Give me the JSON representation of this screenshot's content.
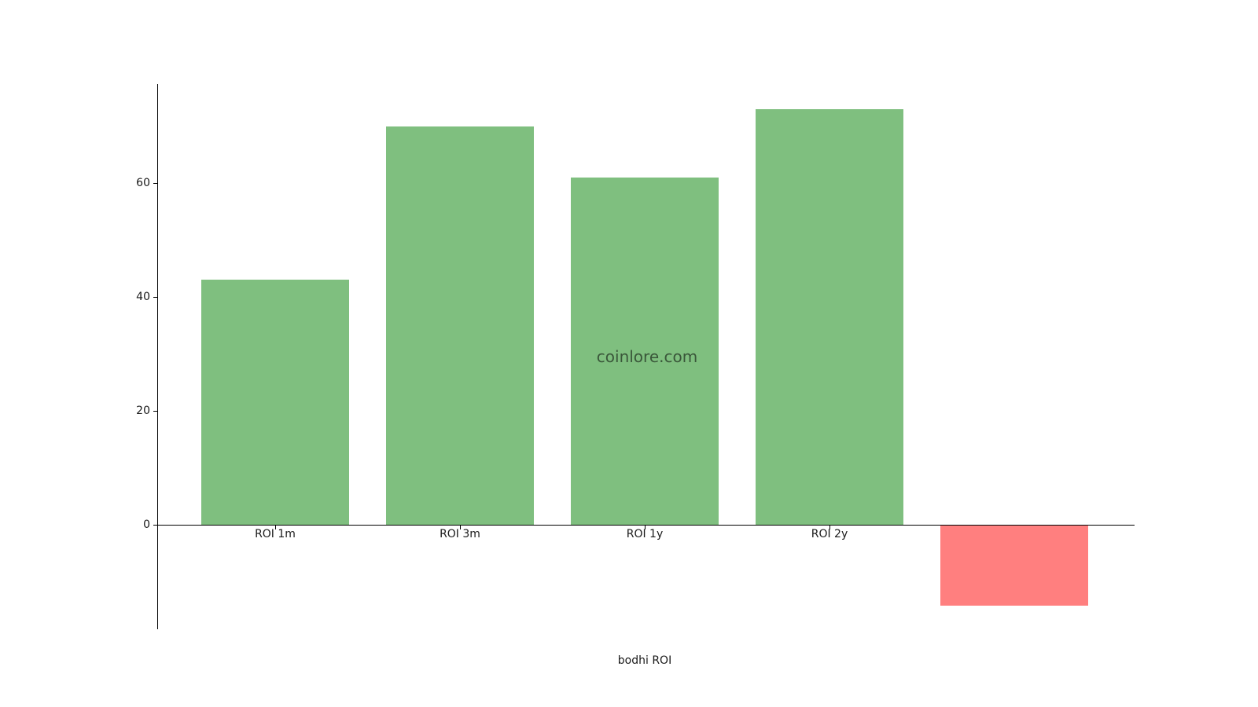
{
  "chart_data": {
    "type": "bar",
    "title": "bodhi ROI",
    "title_position": "bottom-center",
    "watermark": "coinlore.com",
    "categories": [
      "ROI 1m",
      "ROI 3m",
      "ROI 1y",
      "ROI 2y",
      ""
    ],
    "values": [
      43,
      70,
      61,
      73,
      -14
    ],
    "series": [
      {
        "name": "bodhi ROI",
        "values": [
          43,
          70,
          61,
          73,
          -14
        ]
      }
    ],
    "ytick_labels": [
      "0",
      "20",
      "40",
      "60"
    ],
    "yticks": [
      0,
      20,
      40,
      60
    ],
    "ylim": [
      -18.35,
      77.35
    ],
    "xlabel": "bodhi ROI",
    "ylabel": "",
    "grid": false,
    "legend_position": "none",
    "colors": {
      "positive_bar": "#7fbf7f",
      "negative_bar": "#ff7f7f",
      "axis": "#000000",
      "text": "#1a1a1a"
    }
  }
}
